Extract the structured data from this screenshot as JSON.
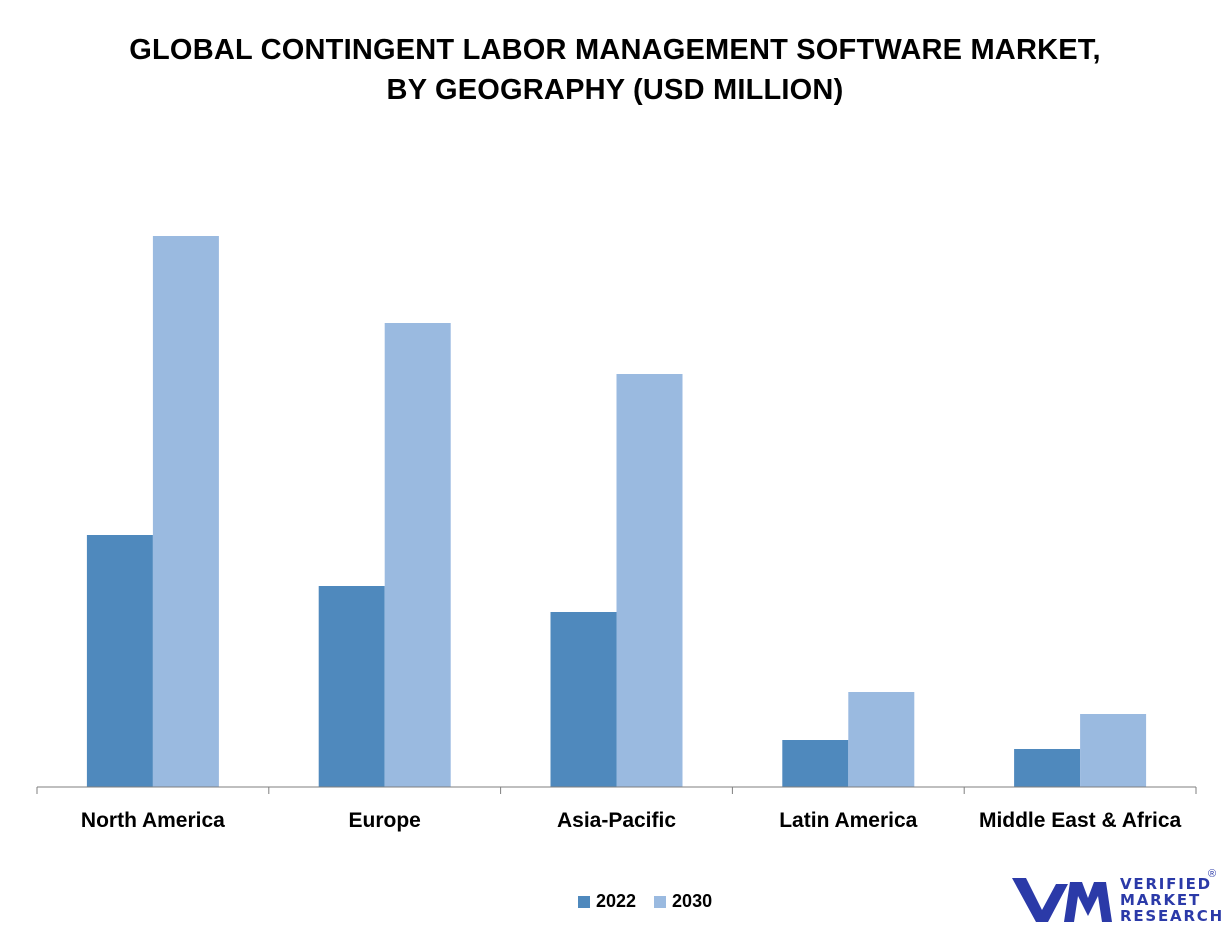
{
  "title_lines": [
    "GLOBAL CONTINGENT LABOR MANAGEMENT SOFTWARE MARKET,",
    "BY GEOGRAPHY (USD MILLION)"
  ],
  "colors": {
    "2022": "#4f89bd",
    "2030": "#9abae0",
    "axis": "#7f7f7f",
    "logo": "#2b3aa8"
  },
  "chart_data": {
    "type": "bar",
    "title": "GLOBAL CONTINGENT LABOR MANAGEMENT SOFTWARE MARKET, BY GEOGRAPHY (USD MILLION)",
    "categories": [
      "North America",
      "Europe",
      "Asia-Pacific",
      "Latin America",
      "Middle East & Africa"
    ],
    "series": [
      {
        "name": "2022",
        "values": [
          252,
          201,
          175,
          47,
          38
        ]
      },
      {
        "name": "2030",
        "values": [
          551,
          464,
          413,
          95,
          73
        ]
      }
    ],
    "ylim": [
      0,
      600
    ],
    "grid": false,
    "legend_position": "bottom-center"
  },
  "logo": {
    "icon_name": "vmr-logo-icon",
    "lines": [
      "VERIFIED",
      "MARKET",
      "RESEARCH"
    ],
    "registered": "®"
  }
}
